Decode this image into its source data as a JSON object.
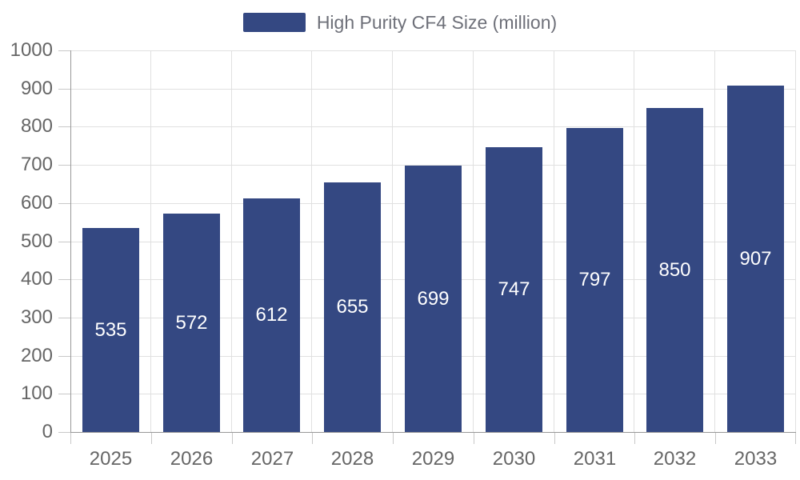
{
  "chart_data": {
    "type": "bar",
    "title": "",
    "series_name": "High Purity CF4 Size (million)",
    "categories": [
      "2025",
      "2026",
      "2027",
      "2028",
      "2029",
      "2030",
      "2031",
      "2032",
      "2033"
    ],
    "values": [
      535,
      572,
      612,
      655,
      699,
      747,
      797,
      850,
      907
    ],
    "xlabel": "",
    "ylabel": "",
    "ylim": [
      0,
      1000
    ],
    "ytick_step": 100,
    "grid": "on",
    "legend_position": "top-center",
    "value_labels": "inside-center-white"
  },
  "colors": {
    "bar": "#344882",
    "gridline": "#e0e0e0",
    "axis_line": "#999999",
    "tick": "#c8c8c8",
    "axis_label": "#666666",
    "legend_text": "#6e7079",
    "value_label": "#ffffff",
    "background": "#ffffff"
  }
}
